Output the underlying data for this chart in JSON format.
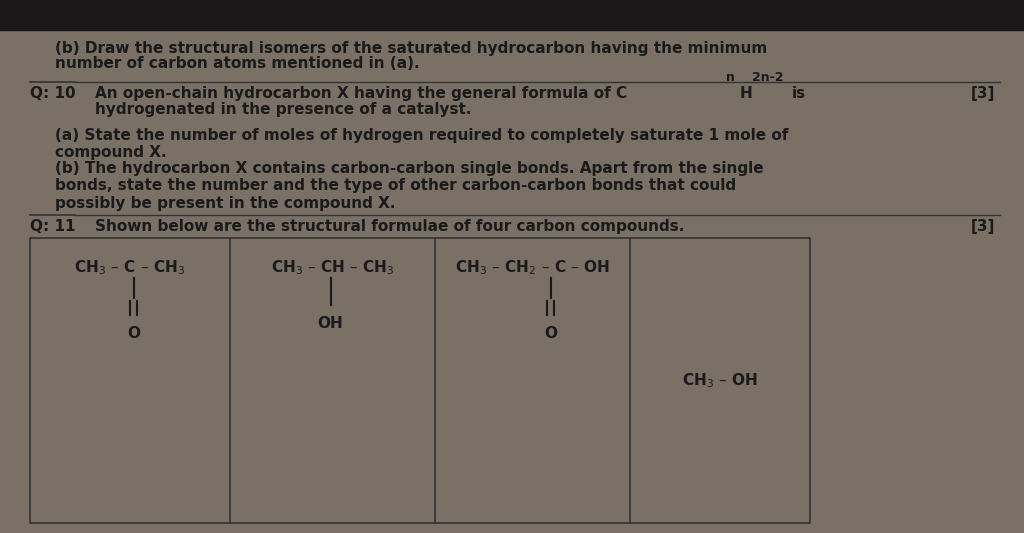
{
  "bg_color": "#7a7065",
  "text_color": "#1a1a1a",
  "line_color": "#333333",
  "border_color": "#333333",
  "top_bar_color": "#1a1818",
  "part_b_header_line1": "(b) Draw the structural isomers of the saturated hydrocarbon having the minimum",
  "part_b_header_line2": "number of carbon atoms mentioned in (a).",
  "q10_label": "Q: 10",
  "q10_text1": "An open-chain hydrocarbon X having the general formula of C",
  "q10_n": "n",
  "q10_h": "H",
  "q10_2n2": "2n-2",
  "q10_is": "is",
  "q10_mark": "[3]",
  "q10_line2": "hydrogenated in the presence of a catalyst.",
  "q10a_text": "(a) State the number of moles of hydrogen required to completely saturate 1 mole of\ncompound X.",
  "q10b_text": "(b) The hydrocarbon X contains carbon-carbon single bonds. Apart from the single\nbonds, state the number and the type of other carbon-carbon bonds that could\npossibly be present in the compound X.",
  "q11_label": "Q: 11",
  "q11_text": "Shown below are the structural formulae of four carbon compounds.",
  "q11_mark": "[3]",
  "figsize": [
    10.24,
    5.33
  ],
  "dpi": 100
}
